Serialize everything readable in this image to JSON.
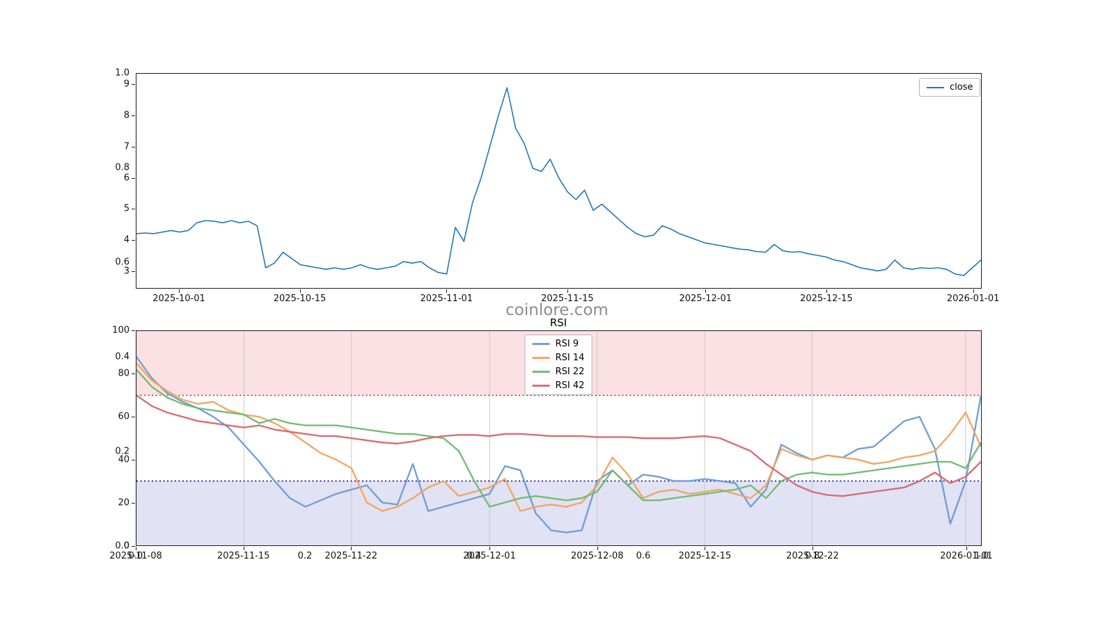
{
  "watermark": "coinlore.com",
  "overlay_axis": {
    "x_ticks": [
      "0.0",
      "0.2",
      "0.4",
      "0.6",
      "0.8",
      "1.0"
    ],
    "y_ticks": [
      "0.0",
      "0.2",
      "0.4",
      "0.6",
      "0.8",
      "1.0"
    ]
  },
  "chart_data": [
    {
      "type": "line",
      "name": "price",
      "title": "",
      "x_start": "2025-09-26",
      "x_end": "2026-01-02",
      "x_total": 98,
      "x_tick_positions": [
        5,
        19,
        36,
        50,
        66,
        80,
        97
      ],
      "x_tick_labels": [
        "2025-10-01",
        "2025-10-15",
        "2025-11-01",
        "2025-11-15",
        "2025-12-01",
        "2025-12-15",
        "2026-01-01"
      ],
      "y_ticks": [
        3,
        4,
        5,
        6,
        7,
        8,
        9
      ],
      "ylim": [
        2.45,
        9.35
      ],
      "grid_vertical": false,
      "legend": {
        "position": "upper right",
        "entries": [
          "close"
        ]
      },
      "series": [
        {
          "name": "close",
          "color": "#1f77b4",
          "line_width": 1.6,
          "opacity": 1,
          "values": [
            4.2,
            4.22,
            4.2,
            4.25,
            4.3,
            4.25,
            4.3,
            4.55,
            4.62,
            4.6,
            4.55,
            4.62,
            4.55,
            4.6,
            4.45,
            3.1,
            3.25,
            3.6,
            3.4,
            3.2,
            3.15,
            3.1,
            3.05,
            3.1,
            3.05,
            3.1,
            3.2,
            3.1,
            3.05,
            3.1,
            3.15,
            3.3,
            3.25,
            3.3,
            3.1,
            2.95,
            2.9,
            4.4,
            3.95,
            5.2,
            6.0,
            7.0,
            8.0,
            8.9,
            7.6,
            7.1,
            6.3,
            6.2,
            6.6,
            6.0,
            5.55,
            5.3,
            5.6,
            4.95,
            5.15,
            4.9,
            4.65,
            4.4,
            4.2,
            4.1,
            4.15,
            4.45,
            4.35,
            4.2,
            4.1,
            4.0,
            3.9,
            3.85,
            3.8,
            3.75,
            3.7,
            3.68,
            3.62,
            3.6,
            3.85,
            3.65,
            3.6,
            3.62,
            3.55,
            3.5,
            3.45,
            3.35,
            3.3,
            3.2,
            3.1,
            3.05,
            3.0,
            3.05,
            3.35,
            3.1,
            3.05,
            3.1,
            3.08,
            3.1,
            3.05,
            2.9,
            2.85,
            3.1,
            3.35
          ]
        }
      ]
    },
    {
      "type": "line",
      "name": "rsi",
      "title": "RSI",
      "x_start": "2025-11-08",
      "x_end": "2026-01-02",
      "x_total": 55,
      "x_tick_positions": [
        0,
        7,
        14,
        23,
        30,
        37,
        44,
        54
      ],
      "x_tick_labels": [
        "2025-11-08",
        "2025-11-15",
        "2025-11-22",
        "2025-12-01",
        "2025-12-08",
        "2025-12-15",
        "2025-12-22",
        "2026-01-01"
      ],
      "y_ticks": [
        0,
        20,
        40,
        60,
        80,
        100
      ],
      "ylim": [
        0,
        100
      ],
      "grid_vertical": true,
      "legend": {
        "position": "upper center",
        "entries": [
          "RSI 9",
          "RSI 14",
          "RSI 22",
          "RSI 42"
        ]
      },
      "bands": {
        "overbought_level": 70,
        "oversold_level": 30,
        "overbought_fill": "#f29aa3",
        "oversold_fill": "#9fa0dd",
        "fill_opacity": 0.3,
        "overbought_line_color": "#d62035",
        "oversold_line_color": "#00008b"
      },
      "series": [
        {
          "name": "RSI 9",
          "color": "#6c9bd2",
          "line_width": 2.4,
          "opacity": 0.95,
          "values": [
            88,
            78,
            71,
            67,
            64,
            60,
            55,
            47,
            39,
            30,
            22,
            18,
            21,
            24,
            26,
            28,
            20,
            19,
            38,
            16,
            18,
            20,
            22,
            24,
            37,
            35,
            15,
            7,
            6,
            7,
            30,
            35,
            28,
            33,
            32,
            30,
            30,
            31,
            30,
            29,
            18,
            26,
            47,
            43,
            40,
            42,
            41,
            45,
            46,
            52,
            58,
            60,
            45,
            10,
            30,
            70
          ]
        },
        {
          "name": "RSI 14",
          "color": "#f2a25c",
          "line_width": 2.4,
          "opacity": 0.95,
          "values": [
            85,
            77,
            72,
            68,
            66,
            67,
            63,
            61,
            60,
            57,
            53,
            48,
            43,
            40,
            36,
            20,
            16,
            18,
            22,
            27,
            30,
            23,
            25,
            27,
            31,
            16,
            18,
            19,
            18,
            20,
            28,
            41,
            33,
            22,
            25,
            26,
            24,
            25,
            26,
            24,
            22,
            28,
            45,
            42,
            40,
            42,
            41,
            40,
            38,
            39,
            41,
            42,
            44,
            52,
            62,
            46
          ]
        },
        {
          "name": "RSI 22",
          "color": "#6db96d",
          "line_width": 2.4,
          "opacity": 0.95,
          "values": [
            82,
            74,
            69,
            66,
            64,
            63,
            62,
            61,
            57,
            59,
            57,
            56,
            56,
            56,
            55,
            54,
            53,
            52,
            52,
            51,
            50,
            44,
            30,
            18,
            20,
            22,
            23,
            22,
            21,
            22,
            25,
            35,
            28,
            21,
            21,
            22,
            23,
            24,
            25,
            26,
            28,
            22,
            30,
            33,
            34,
            33,
            33,
            34,
            35,
            36,
            37,
            38,
            39,
            39,
            36,
            48
          ]
        },
        {
          "name": "RSI 42",
          "color": "#d9646c",
          "line_width": 2.4,
          "opacity": 0.95,
          "values": [
            70,
            65,
            62,
            60,
            58,
            57,
            56,
            55,
            56,
            54,
            53,
            52,
            51,
            51,
            50,
            49,
            48,
            47.5,
            48.5,
            50,
            51,
            51.5,
            51.5,
            51,
            52,
            52,
            51.5,
            51,
            51,
            51,
            50.5,
            50.5,
            50.5,
            50,
            50,
            50,
            50.5,
            51,
            50,
            47,
            44,
            38,
            33,
            28,
            25,
            23.5,
            23,
            24,
            25,
            26,
            27,
            30,
            34,
            29,
            32,
            39
          ]
        }
      ]
    }
  ]
}
